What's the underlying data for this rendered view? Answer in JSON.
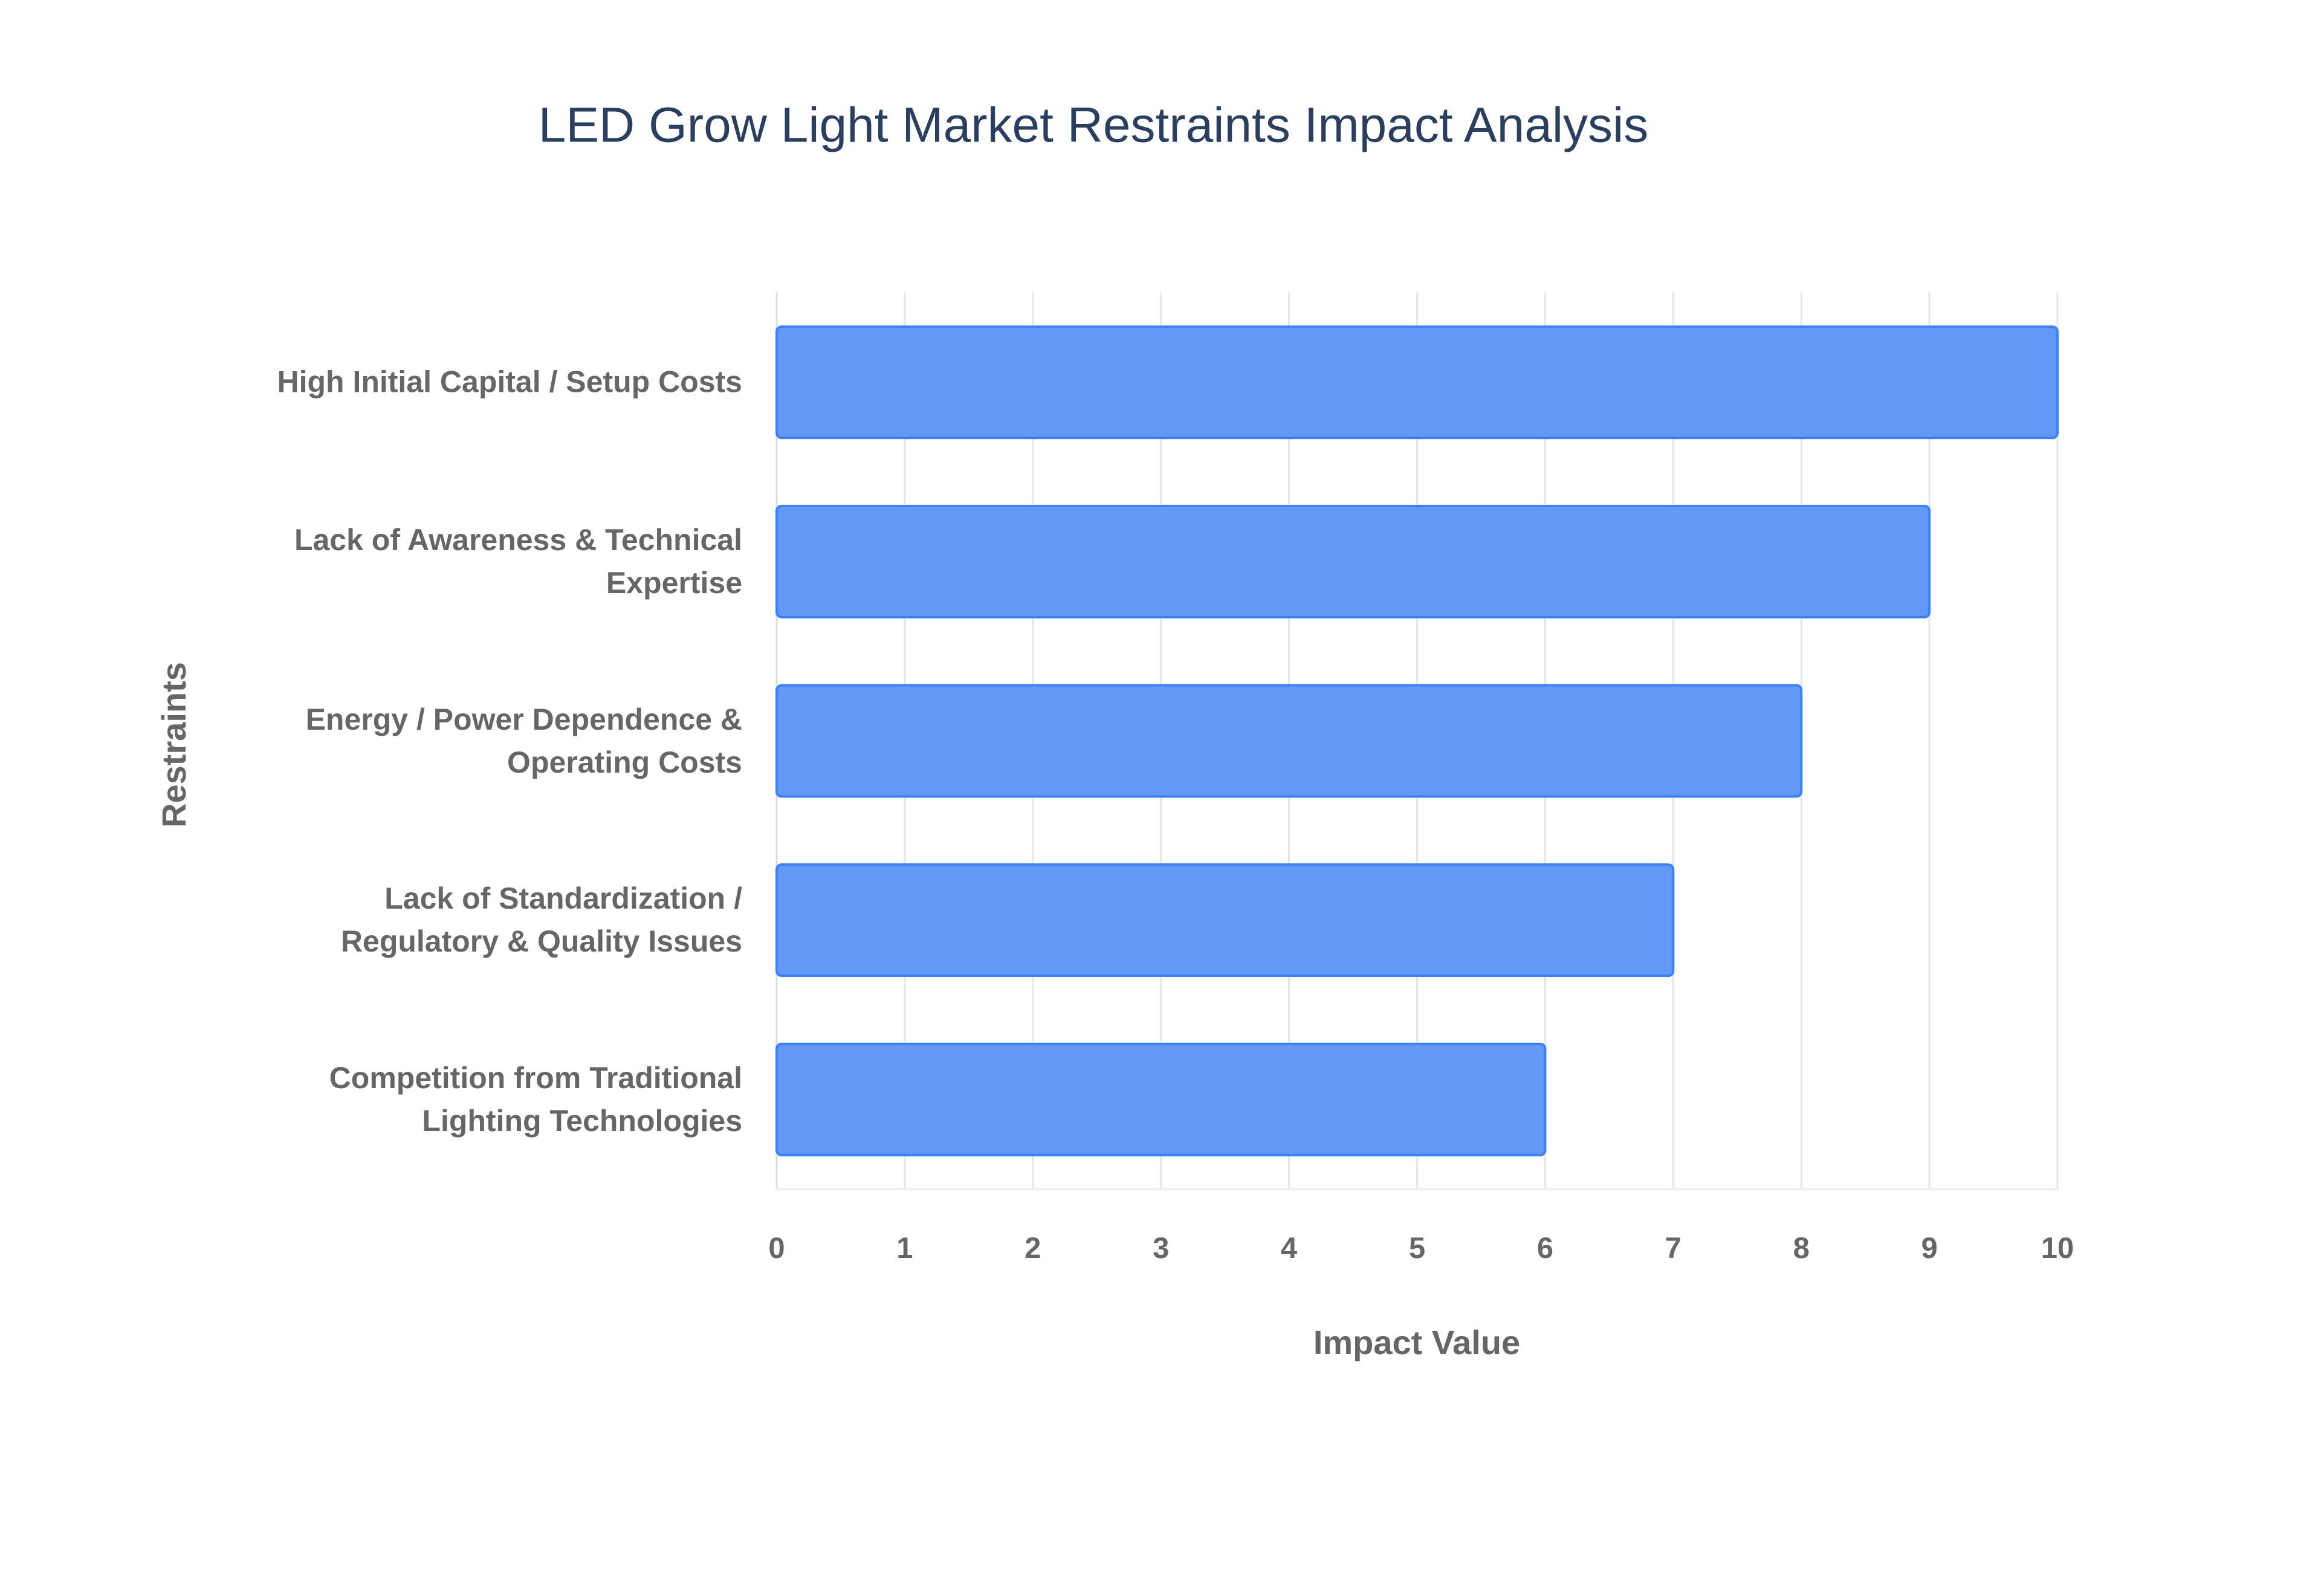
{
  "chart_data": {
    "type": "barh",
    "title": "LED Grow Light Market Restraints Impact Analysis",
    "x_label": "Impact Value",
    "y_label": "Restraints",
    "categories": [
      "High Initial Capital / Setup Costs",
      "Lack of Awareness & Technical Expertise",
      "Energy / Power Dependence & Operating Costs",
      "Lack of Standardization / Regulatory & Quality Issues",
      "Competition from Traditional Lighting Technologies"
    ],
    "values": [
      10,
      9,
      8,
      7,
      6
    ],
    "color": "#6399f5",
    "xlim": [
      0,
      10
    ],
    "xticks": [
      0,
      1,
      2,
      3,
      4,
      5,
      6,
      7,
      8,
      9,
      10
    ],
    "grid": true
  }
}
